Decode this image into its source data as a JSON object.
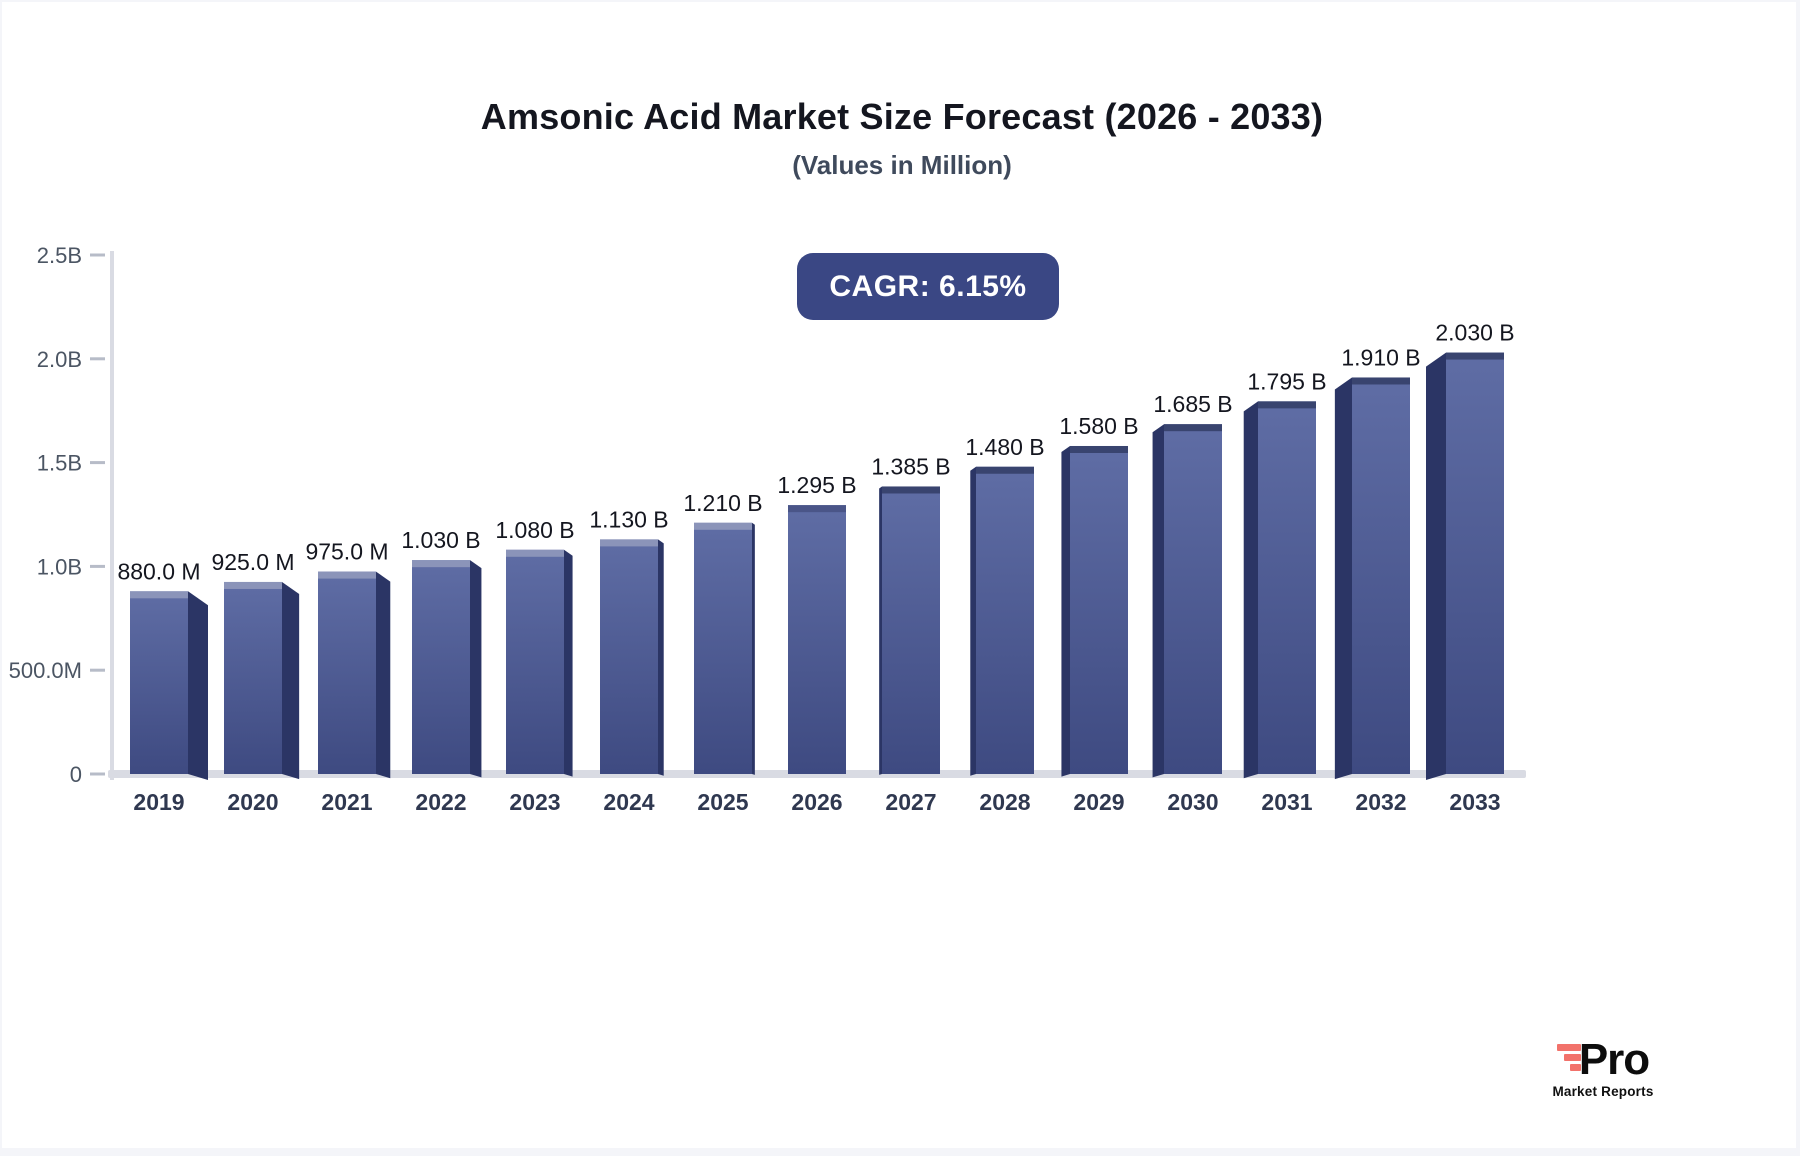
{
  "page": {
    "title": "Amsonic Acid Market Size Forecast (2026 - 2033)",
    "subtitle": "(Values in Million)",
    "cagr_label": "CAGR: 6.15%"
  },
  "chart_data": {
    "type": "bar",
    "title": "Amsonic Acid Market Size Forecast (2026 - 2033)",
    "subtitle": "(Values in Million)",
    "unit": "USD Million",
    "cagr": "6.15%",
    "categories": [
      "2019",
      "2020",
      "2021",
      "2022",
      "2023",
      "2024",
      "2025",
      "2026",
      "2027",
      "2028",
      "2029",
      "2030",
      "2031",
      "2032",
      "2033"
    ],
    "values_millions": [
      880,
      925,
      975,
      1030,
      1080,
      1130,
      1210,
      1295,
      1385,
      1480,
      1580,
      1685,
      1795,
      1910,
      2030
    ],
    "bar_labels": [
      "880.0 M",
      "925.0 M",
      "975.0 M",
      "1.030 B",
      "1.080 B",
      "1.130 B",
      "1.210 B",
      "1.295 B",
      "1.385 B",
      "1.480 B",
      "1.580 B",
      "1.685 B",
      "1.795 B",
      "1.910 B",
      "2.030 B"
    ],
    "y_ticks": [
      {
        "label": "0",
        "value": 0
      },
      {
        "label": "500.0M",
        "value": 500
      },
      {
        "label": "1.0B",
        "value": 1000
      },
      {
        "label": "1.5B",
        "value": 1500
      },
      {
        "label": "2.0B",
        "value": 2000
      },
      {
        "label": "2.5B",
        "value": 2500
      }
    ],
    "ylim": [
      0,
      2500
    ],
    "xlabel": "",
    "ylabel": "",
    "grid": false,
    "legend": false
  },
  "colors": {
    "badge_bg": "#3A4784",
    "bar_face_top": "#5F6DA5",
    "bar_face_bottom": "#3E4A81",
    "bar_side": "#2B3565",
    "bar_top_light": "#8B94B9",
    "bar_top_dark": "#39446F",
    "axis_line": "#D9DBE3",
    "tick_mark": "#B7BCC8",
    "tick_text": "#4B5563",
    "category_text": "#2F3850",
    "value_text": "#14161F",
    "logo_accent": "#F2726B"
  },
  "logo": {
    "name": "Pro",
    "tagline": "Market Reports"
  }
}
